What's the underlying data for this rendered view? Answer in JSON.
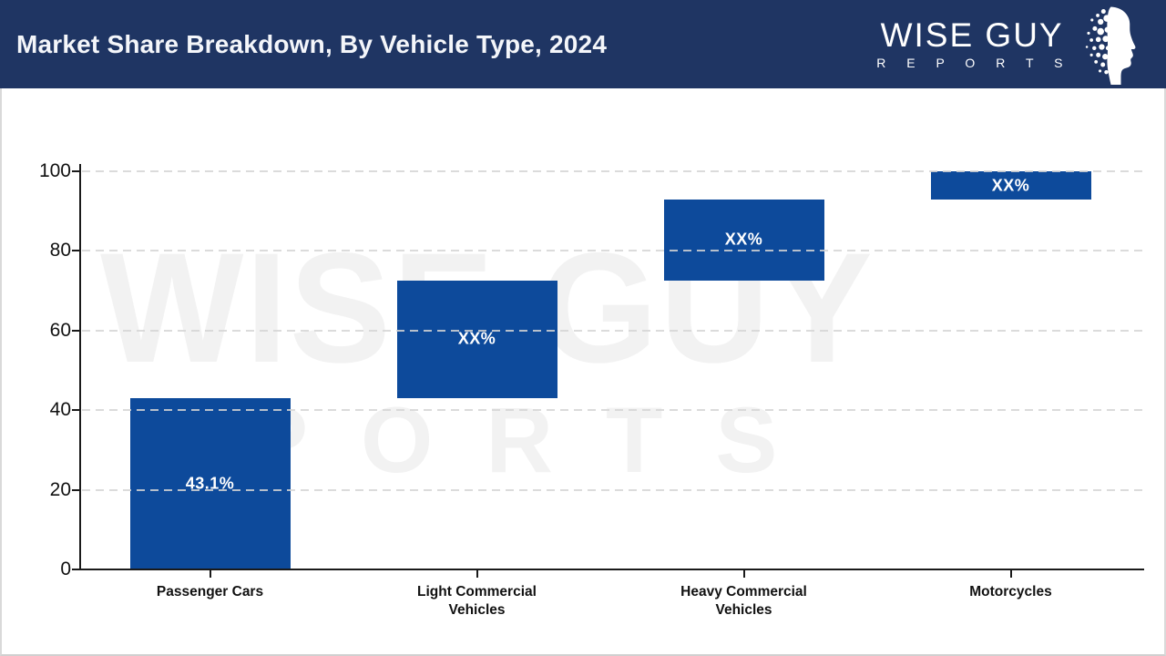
{
  "header": {
    "title": "Market Share Breakdown, By Vehicle Type, 2024",
    "brand_color": "#1f3563",
    "logo": {
      "main": "WISE GUY",
      "sub": "R E P O R T S"
    }
  },
  "watermark": {
    "line1": "WISE GUY",
    "line2": "PORTS"
  },
  "chart_data": {
    "type": "bar",
    "subtype": "waterfall",
    "title": "Market Share Breakdown, By Vehicle Type, 2024",
    "xlabel": "",
    "ylabel": "",
    "ylim": [
      0,
      100
    ],
    "yticks": [
      0,
      20,
      40,
      60,
      80,
      100
    ],
    "grid": "dashed horizontal, drawn over bars",
    "legend": "none",
    "bar_color": "#0d4a9b",
    "categories": [
      "Passenger Cars",
      "Light Commercial\nVehicles",
      "Heavy Commercial\nVehicles",
      "Motorcycles"
    ],
    "segment_bottoms": [
      0,
      43.1,
      72.6,
      92.9
    ],
    "segment_tops": [
      43.1,
      72.6,
      92.9,
      100
    ],
    "segment_values": [
      43.1,
      29.5,
      20.3,
      7.1
    ],
    "bar_labels": [
      "43.1%",
      "XX%",
      "XX%",
      "XX%"
    ]
  }
}
